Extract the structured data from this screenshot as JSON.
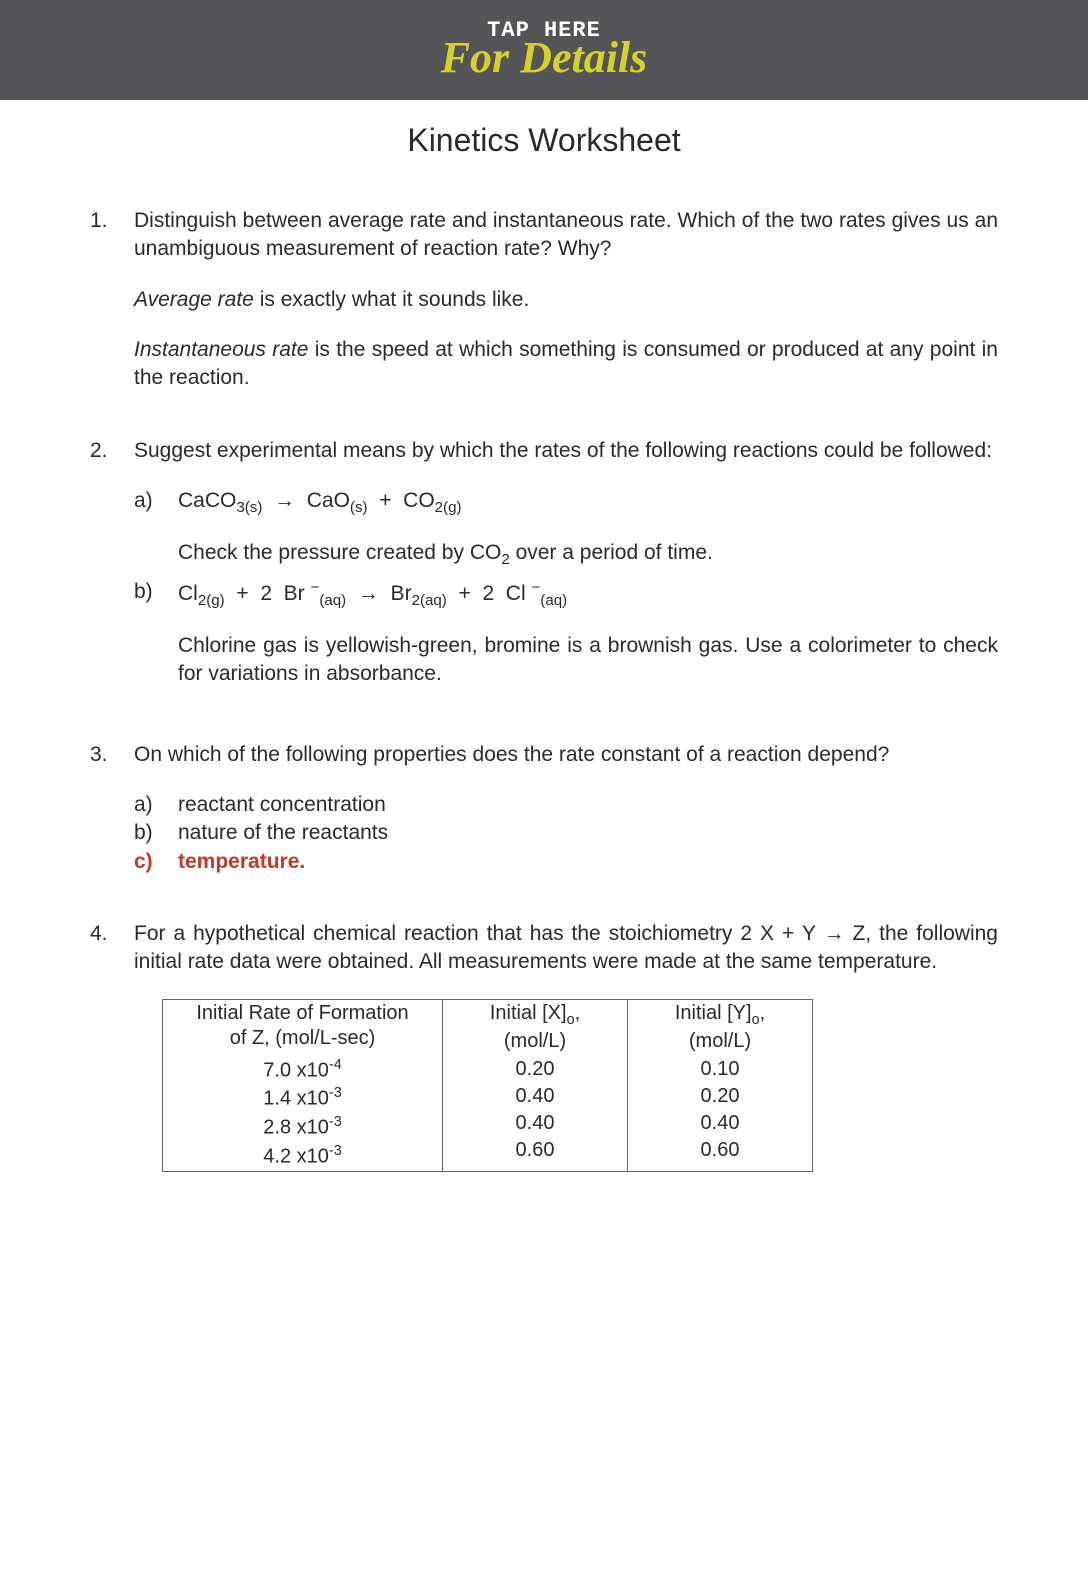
{
  "banner": {
    "top": "TAP HERE",
    "bottom": "For Details",
    "bg": "#555558",
    "accent": "#d6d12a"
  },
  "title": "Kinetics Worksheet",
  "q1": {
    "num": "1.",
    "prompt": "Distinguish between average rate and instantaneous rate.  Which of the two rates gives us an unambiguous measurement of reaction rate? Why?",
    "a1_it": "Average rate",
    "a1_rest": " is exactly what it sounds like.",
    "a2_it": "Instantaneous rate",
    "a2_rest": " is the speed at which something is consumed or produced at any point in the reaction."
  },
  "q2": {
    "num": "2.",
    "prompt": "Suggest experimental means by which the rates of the following reactions could be followed:",
    "a": {
      "label": "a)",
      "answer_pre": "Check the pressure created by CO",
      "answer_sub": "2",
      "answer_post": " over a period of time."
    },
    "b": {
      "label": "b)",
      "answer": "Chlorine gas is yellowish-green, bromine is a brownish gas.  Use a colorimeter to check for variations in absorbance."
    }
  },
  "q3": {
    "num": "3.",
    "prompt": "On which of the following properties does the rate constant of a reaction depend?",
    "a": {
      "label": "a)",
      "text": "reactant concentration"
    },
    "b": {
      "label": "b)",
      "text": "nature of the reactants"
    },
    "c": {
      "label": "c)",
      "text": "temperature."
    }
  },
  "q4": {
    "num": "4.",
    "prompt": "For a hypothetical chemical reaction that has the stoichiometry 2 X + Y → Z, the following initial rate data were obtained. All measurements were made at the same temperature.",
    "table": {
      "h1a": "Initial Rate of Formation",
      "h1b": "of Z, (mol/L-sec)",
      "h2a": "Initial [X]",
      "h2b": "(mol/L)",
      "h3a": "Initial [Y]",
      "h3b": "(mol/L)",
      "r1c1_a": "7.0 x10",
      "r1c1_b": "-4",
      "r1c2": "0.20",
      "r1c3": "0.10",
      "r2c1_a": "1.4 x10",
      "r2c1_b": "-3",
      "r2c2": "0.40",
      "r2c3": "0.20",
      "r3c1_a": "2.8 x10",
      "r3c1_b": "-3",
      "r3c2": "0.40",
      "r3c3": "0.40",
      "r4c1_a": "4.2 x10",
      "r4c1_b": "-3",
      "r4c2": "0.60",
      "r4c3": "0.60"
    }
  }
}
